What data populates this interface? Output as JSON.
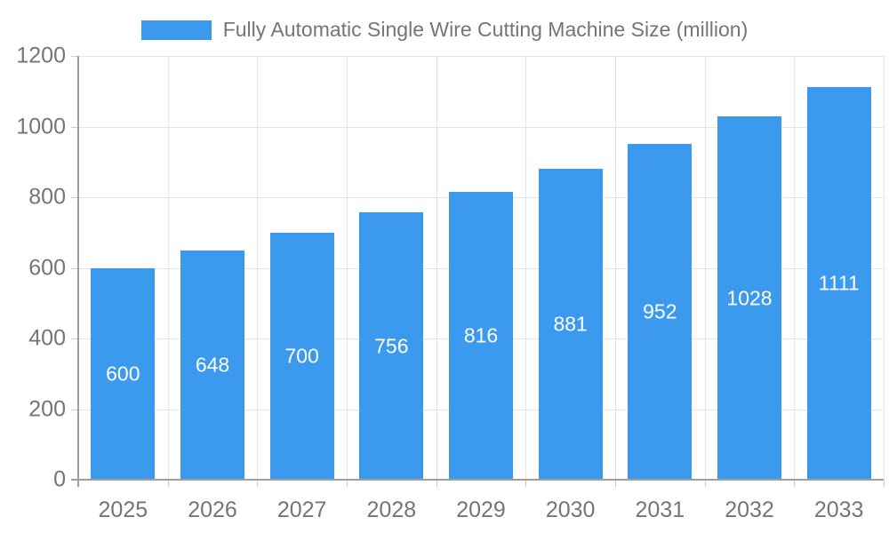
{
  "chart_data": {
    "type": "bar",
    "title": "Fully Automatic Single Wire Cutting Machine Size (million)",
    "legend": {
      "position": "top",
      "label": "Fully Automatic Single Wire Cutting Machine Size (million)"
    },
    "categories": [
      "2025",
      "2026",
      "2027",
      "2028",
      "2029",
      "2030",
      "2031",
      "2032",
      "2033"
    ],
    "values": [
      600,
      648,
      700,
      756,
      816,
      881,
      952,
      1028,
      1111
    ],
    "value_labels_visible": true,
    "xlabel": "",
    "ylabel": "",
    "ylim": [
      0,
      1200
    ],
    "yticks": [
      0,
      200,
      400,
      600,
      800,
      1000,
      1200
    ],
    "grid": true,
    "colors": {
      "bar": "#3b99ee",
      "bar_label_text": "#ffffff",
      "grid_line": "#e6e6e6",
      "tick_mark": "#cccccc",
      "axis_line": "#9e9e9e",
      "tick_label_text": "#757575",
      "legend_text": "#757575"
    }
  }
}
